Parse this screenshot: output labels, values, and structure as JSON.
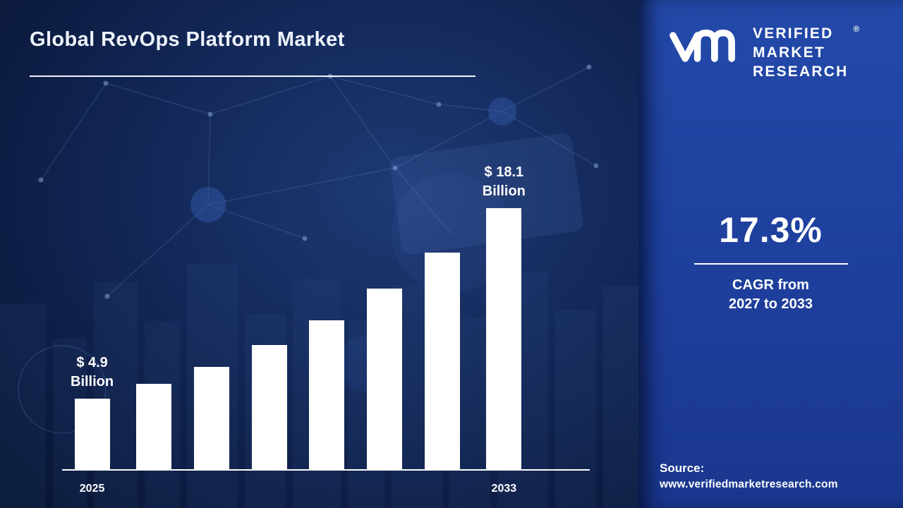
{
  "title": "Global RevOps Platform Market",
  "logo": {
    "line1": "VERIFIED",
    "line2": "MARKET",
    "line3": "RESEARCH",
    "registered_mark": "®"
  },
  "stats": {
    "cagr_value": "17.3%",
    "cagr_line1": "CAGR from",
    "cagr_line2": "2027 to 2033"
  },
  "source": {
    "label": "Source:",
    "url": "www.verifiedmarketresearch.com"
  },
  "colors": {
    "left_background": "#14295a",
    "right_panel": "#1e3f9c",
    "bar_color": "#ffffff",
    "text_color": "#ffffff"
  },
  "chart_data": {
    "type": "bar",
    "title": "Global RevOps Platform Market",
    "unit": "USD Billion",
    "x_tick_labels": [
      "2025",
      "",
      "",
      "",
      "",
      "",
      "",
      "2033"
    ],
    "values": [
      4.9,
      5.9,
      7.1,
      8.6,
      10.3,
      12.5,
      15.0,
      18.1
    ],
    "ylim": [
      0,
      18.1
    ],
    "grid": false,
    "legend": false,
    "bar_color": "#ffffff",
    "annotations": [
      {
        "bar_index": 0,
        "line1": "$ 4.9",
        "line2": "Billion"
      },
      {
        "bar_index": 7,
        "line1": "$ 18.1",
        "line2": "Billion"
      }
    ]
  }
}
